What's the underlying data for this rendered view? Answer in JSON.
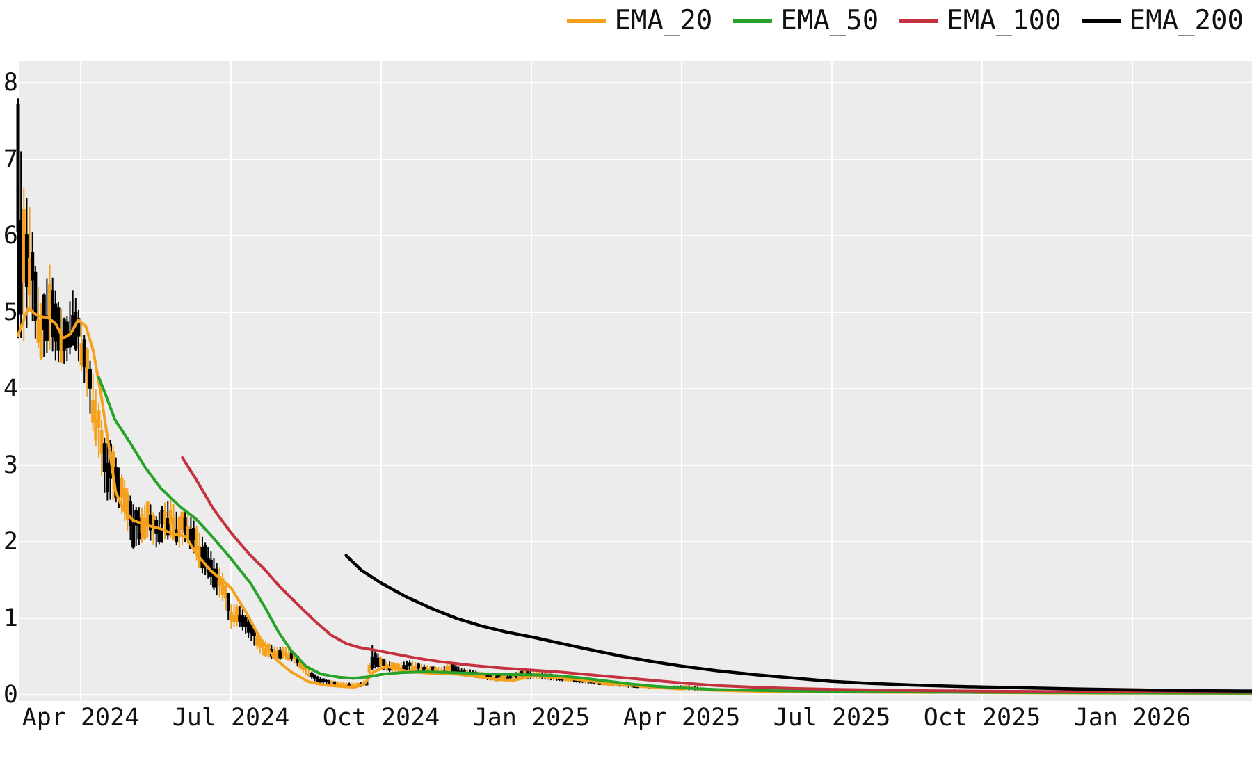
{
  "chart_data": {
    "type": "candlestick+line",
    "title": "",
    "xlabel": "",
    "ylabel": "",
    "x_unit": "months since 2024-04-01",
    "ylim": [
      0,
      8.3
    ],
    "grid": true,
    "legend_position": "top-right",
    "plot_bg": "#ececec",
    "grid_color": "#ffffff",
    "tick_color": "#111111",
    "candle_up": "#f5a11c",
    "candle_down": "#000000",
    "y_ticks": [
      0,
      1,
      2,
      3,
      4,
      5,
      6,
      7,
      8
    ],
    "x_ticks": [
      {
        "m": 0,
        "label": "Apr 2024"
      },
      {
        "m": 3,
        "label": "Jul 2024"
      },
      {
        "m": 6,
        "label": "Oct 2024"
      },
      {
        "m": 9,
        "label": "Jan 2025"
      },
      {
        "m": 12,
        "label": "Apr 2025"
      },
      {
        "m": 15,
        "label": "Jul 2025"
      },
      {
        "m": 18,
        "label": "Oct 2025"
      },
      {
        "m": 21,
        "label": "Jan 2026"
      }
    ],
    "price_envelope": [
      [
        -1.25,
        4.65,
        7.8
      ],
      [
        -1.15,
        4.55,
        6.7
      ],
      [
        -1.0,
        5.0,
        6.35
      ],
      [
        -0.9,
        4.6,
        5.6
      ],
      [
        -0.78,
        4.35,
        5.1
      ],
      [
        -0.62,
        4.5,
        5.65
      ],
      [
        -0.45,
        4.3,
        5.2
      ],
      [
        -0.3,
        4.3,
        4.9
      ],
      [
        -0.15,
        4.55,
        5.35
      ],
      [
        0.0,
        4.25,
        4.95
      ],
      [
        0.12,
        3.9,
        4.6
      ],
      [
        0.25,
        3.4,
        4.2
      ],
      [
        0.38,
        3.0,
        3.75
      ],
      [
        0.5,
        2.5,
        3.3
      ],
      [
        0.62,
        2.55,
        3.35
      ],
      [
        0.75,
        2.45,
        3.0
      ],
      [
        0.9,
        2.2,
        2.8
      ],
      [
        1.05,
        1.9,
        2.5
      ],
      [
        1.2,
        1.95,
        2.45
      ],
      [
        1.35,
        2.05,
        2.55
      ],
      [
        1.5,
        1.9,
        2.35
      ],
      [
        1.65,
        2.0,
        2.5
      ],
      [
        1.8,
        2.05,
        2.6
      ],
      [
        1.95,
        1.9,
        2.35
      ],
      [
        2.1,
        2.0,
        2.45
      ],
      [
        2.25,
        1.85,
        2.3
      ],
      [
        2.4,
        1.6,
        2.1
      ],
      [
        2.55,
        1.5,
        1.95
      ],
      [
        2.7,
        1.3,
        1.75
      ],
      [
        2.85,
        1.2,
        1.6
      ],
      [
        3.0,
        0.85,
        1.2
      ],
      [
        3.15,
        0.9,
        1.2
      ],
      [
        3.3,
        0.78,
        1.05
      ],
      [
        3.45,
        0.65,
        0.9
      ],
      [
        3.6,
        0.52,
        0.74
      ],
      [
        3.75,
        0.48,
        0.68
      ],
      [
        3.9,
        0.45,
        0.62
      ],
      [
        4.05,
        0.46,
        0.64
      ],
      [
        4.2,
        0.44,
        0.6
      ],
      [
        4.35,
        0.35,
        0.5
      ],
      [
        4.5,
        0.25,
        0.38
      ],
      [
        4.65,
        0.18,
        0.28
      ],
      [
        4.8,
        0.14,
        0.23
      ],
      [
        5.0,
        0.11,
        0.19
      ],
      [
        5.2,
        0.1,
        0.17
      ],
      [
        5.4,
        0.09,
        0.16
      ],
      [
        5.6,
        0.1,
        0.17
      ],
      [
        5.72,
        0.12,
        0.22
      ],
      [
        5.82,
        0.3,
        0.66
      ],
      [
        5.92,
        0.36,
        0.56
      ],
      [
        6.05,
        0.32,
        0.47
      ],
      [
        6.2,
        0.29,
        0.43
      ],
      [
        6.4,
        0.28,
        0.42
      ],
      [
        6.55,
        0.3,
        0.46
      ],
      [
        6.8,
        0.27,
        0.41
      ],
      [
        7.0,
        0.26,
        0.38
      ],
      [
        7.2,
        0.25,
        0.36
      ],
      [
        7.4,
        0.26,
        0.44
      ],
      [
        7.6,
        0.24,
        0.35
      ],
      [
        7.8,
        0.23,
        0.33
      ],
      [
        8.0,
        0.2,
        0.3
      ],
      [
        8.25,
        0.18,
        0.28
      ],
      [
        8.5,
        0.17,
        0.26
      ],
      [
        8.75,
        0.19,
        0.31
      ],
      [
        9.0,
        0.2,
        0.33
      ],
      [
        9.2,
        0.2,
        0.3
      ],
      [
        9.45,
        0.18,
        0.27
      ],
      [
        9.7,
        0.17,
        0.25
      ],
      [
        10.0,
        0.15,
        0.23
      ],
      [
        10.3,
        0.13,
        0.2
      ],
      [
        10.6,
        0.11,
        0.18
      ],
      [
        11.0,
        0.09,
        0.15
      ],
      [
        11.4,
        0.08,
        0.13
      ],
      [
        11.8,
        0.07,
        0.12
      ],
      [
        12.1,
        0.06,
        0.13
      ],
      [
        12.5,
        0.05,
        0.09
      ],
      [
        13.0,
        0.045,
        0.08
      ],
      [
        13.5,
        0.04,
        0.07
      ],
      [
        14.0,
        0.038,
        0.065
      ],
      [
        14.5,
        0.035,
        0.06
      ],
      [
        15.0,
        0.03,
        0.055
      ],
      [
        15.5,
        0.03,
        0.05
      ],
      [
        16.0,
        0.028,
        0.048
      ],
      [
        16.5,
        0.026,
        0.045
      ],
      [
        17.0,
        0.025,
        0.042
      ],
      [
        17.42,
        0.028,
        0.075
      ],
      [
        17.8,
        0.024,
        0.04
      ],
      [
        18.3,
        0.022,
        0.038
      ],
      [
        19.0,
        0.02,
        0.035
      ],
      [
        20.0,
        0.02,
        0.032
      ],
      [
        21.0,
        0.018,
        0.03
      ],
      [
        22.0,
        0.017,
        0.028
      ],
      [
        23.45,
        0.016,
        0.026
      ]
    ],
    "series": [
      {
        "name": "EMA_20",
        "color": "#f5a11c",
        "width": 4,
        "points": [
          [
            -1.25,
            4.7
          ],
          [
            -1.05,
            5.05
          ],
          [
            -0.85,
            4.95
          ],
          [
            -0.65,
            4.93
          ],
          [
            -0.5,
            4.85
          ],
          [
            -0.35,
            4.66
          ],
          [
            -0.2,
            4.72
          ],
          [
            -0.05,
            4.9
          ],
          [
            0.1,
            4.82
          ],
          [
            0.25,
            4.5
          ],
          [
            0.4,
            3.95
          ],
          [
            0.55,
            3.3
          ],
          [
            0.7,
            2.65
          ],
          [
            0.85,
            2.42
          ],
          [
            1.05,
            2.28
          ],
          [
            1.3,
            2.22
          ],
          [
            1.6,
            2.17
          ],
          [
            1.85,
            2.1
          ],
          [
            2.1,
            2.07
          ],
          [
            2.3,
            1.85
          ],
          [
            2.6,
            1.62
          ],
          [
            3.0,
            1.4
          ],
          [
            3.3,
            1.08
          ],
          [
            3.6,
            0.72
          ],
          [
            3.9,
            0.46
          ],
          [
            4.2,
            0.3
          ],
          [
            4.55,
            0.17
          ],
          [
            4.9,
            0.125
          ],
          [
            5.3,
            0.105
          ],
          [
            5.45,
            0.1
          ],
          [
            5.65,
            0.13
          ],
          [
            5.85,
            0.3
          ],
          [
            6.1,
            0.37
          ],
          [
            6.5,
            0.31
          ],
          [
            7.0,
            0.28
          ],
          [
            7.5,
            0.27
          ],
          [
            7.9,
            0.24
          ],
          [
            8.3,
            0.2
          ],
          [
            8.65,
            0.19
          ],
          [
            9.05,
            0.25
          ],
          [
            9.4,
            0.23
          ],
          [
            9.8,
            0.21
          ],
          [
            10.3,
            0.17
          ],
          [
            10.8,
            0.14
          ],
          [
            11.4,
            0.1
          ],
          [
            12.0,
            0.075
          ],
          [
            12.15,
            0.09
          ],
          [
            12.6,
            0.06
          ],
          [
            13.2,
            0.05
          ],
          [
            14.0,
            0.042
          ],
          [
            15.0,
            0.036
          ],
          [
            16.0,
            0.032
          ],
          [
            17.0,
            0.029
          ],
          [
            17.45,
            0.035
          ],
          [
            18.0,
            0.027
          ],
          [
            19.0,
            0.024
          ],
          [
            20.5,
            0.021
          ],
          [
            22.0,
            0.019
          ],
          [
            23.45,
            0.018
          ]
        ]
      },
      {
        "name": "EMA_50",
        "color": "#28a228",
        "width": 4,
        "points": [
          [
            0.36,
            4.15
          ],
          [
            0.5,
            3.92
          ],
          [
            0.68,
            3.6
          ],
          [
            1.0,
            3.28
          ],
          [
            1.28,
            2.98
          ],
          [
            1.6,
            2.7
          ],
          [
            2.0,
            2.45
          ],
          [
            2.3,
            2.3
          ],
          [
            2.65,
            2.05
          ],
          [
            3.0,
            1.78
          ],
          [
            3.4,
            1.45
          ],
          [
            3.7,
            1.12
          ],
          [
            3.95,
            0.82
          ],
          [
            4.2,
            0.58
          ],
          [
            4.5,
            0.37
          ],
          [
            4.8,
            0.27
          ],
          [
            5.15,
            0.23
          ],
          [
            5.45,
            0.215
          ],
          [
            5.75,
            0.235
          ],
          [
            6.05,
            0.27
          ],
          [
            6.4,
            0.29
          ],
          [
            6.9,
            0.3
          ],
          [
            7.4,
            0.29
          ],
          [
            8.0,
            0.275
          ],
          [
            8.6,
            0.265
          ],
          [
            9.05,
            0.26
          ],
          [
            9.5,
            0.25
          ],
          [
            10.0,
            0.22
          ],
          [
            10.5,
            0.18
          ],
          [
            11.0,
            0.14
          ],
          [
            11.5,
            0.11
          ],
          [
            12.0,
            0.09
          ],
          [
            12.7,
            0.068
          ],
          [
            13.5,
            0.056
          ],
          [
            14.5,
            0.047
          ],
          [
            15.5,
            0.04
          ],
          [
            16.5,
            0.036
          ],
          [
            17.5,
            0.032
          ],
          [
            18.5,
            0.029
          ],
          [
            20.0,
            0.026
          ],
          [
            21.5,
            0.023
          ],
          [
            23.45,
            0.02
          ]
        ]
      },
      {
        "name": "EMA_100",
        "color": "#c4323f",
        "width": 4,
        "points": [
          [
            2.03,
            3.1
          ],
          [
            2.3,
            2.82
          ],
          [
            2.65,
            2.43
          ],
          [
            3.0,
            2.12
          ],
          [
            3.35,
            1.85
          ],
          [
            3.7,
            1.62
          ],
          [
            3.95,
            1.43
          ],
          [
            4.35,
            1.17
          ],
          [
            4.7,
            0.95
          ],
          [
            5.0,
            0.78
          ],
          [
            5.3,
            0.67
          ],
          [
            5.55,
            0.62
          ],
          [
            5.95,
            0.575
          ],
          [
            6.3,
            0.53
          ],
          [
            6.7,
            0.48
          ],
          [
            7.2,
            0.43
          ],
          [
            7.8,
            0.385
          ],
          [
            8.4,
            0.35
          ],
          [
            9.05,
            0.32
          ],
          [
            9.6,
            0.295
          ],
          [
            10.2,
            0.26
          ],
          [
            10.8,
            0.225
          ],
          [
            11.4,
            0.19
          ],
          [
            12.0,
            0.155
          ],
          [
            12.7,
            0.12
          ],
          [
            13.5,
            0.098
          ],
          [
            14.3,
            0.082
          ],
          [
            15.0,
            0.072
          ],
          [
            16.0,
            0.062
          ],
          [
            17.0,
            0.054
          ],
          [
            18.0,
            0.048
          ],
          [
            19.5,
            0.042
          ],
          [
            21.0,
            0.037
          ],
          [
            23.45,
            0.032
          ]
        ]
      },
      {
        "name": "EMA_200",
        "color": "#000000",
        "width": 4.5,
        "points": [
          [
            5.3,
            1.82
          ],
          [
            5.6,
            1.63
          ],
          [
            6.0,
            1.46
          ],
          [
            6.5,
            1.28
          ],
          [
            7.0,
            1.13
          ],
          [
            7.5,
            1.0
          ],
          [
            8.0,
            0.9
          ],
          [
            8.5,
            0.82
          ],
          [
            9.05,
            0.75
          ],
          [
            9.6,
            0.67
          ],
          [
            10.2,
            0.585
          ],
          [
            10.8,
            0.505
          ],
          [
            11.4,
            0.435
          ],
          [
            12.0,
            0.375
          ],
          [
            12.7,
            0.315
          ],
          [
            13.5,
            0.26
          ],
          [
            14.3,
            0.215
          ],
          [
            15.0,
            0.175
          ],
          [
            15.8,
            0.148
          ],
          [
            16.6,
            0.127
          ],
          [
            17.4,
            0.112
          ],
          [
            18.0,
            0.102
          ],
          [
            19.0,
            0.088
          ],
          [
            20.0,
            0.075
          ],
          [
            21.0,
            0.065
          ],
          [
            22.2,
            0.055
          ],
          [
            23.45,
            0.048
          ]
        ]
      }
    ],
    "legend": [
      {
        "label": "EMA_20"
      },
      {
        "label": "EMA_50"
      },
      {
        "label": "EMA_100"
      },
      {
        "label": "EMA_200"
      }
    ]
  }
}
